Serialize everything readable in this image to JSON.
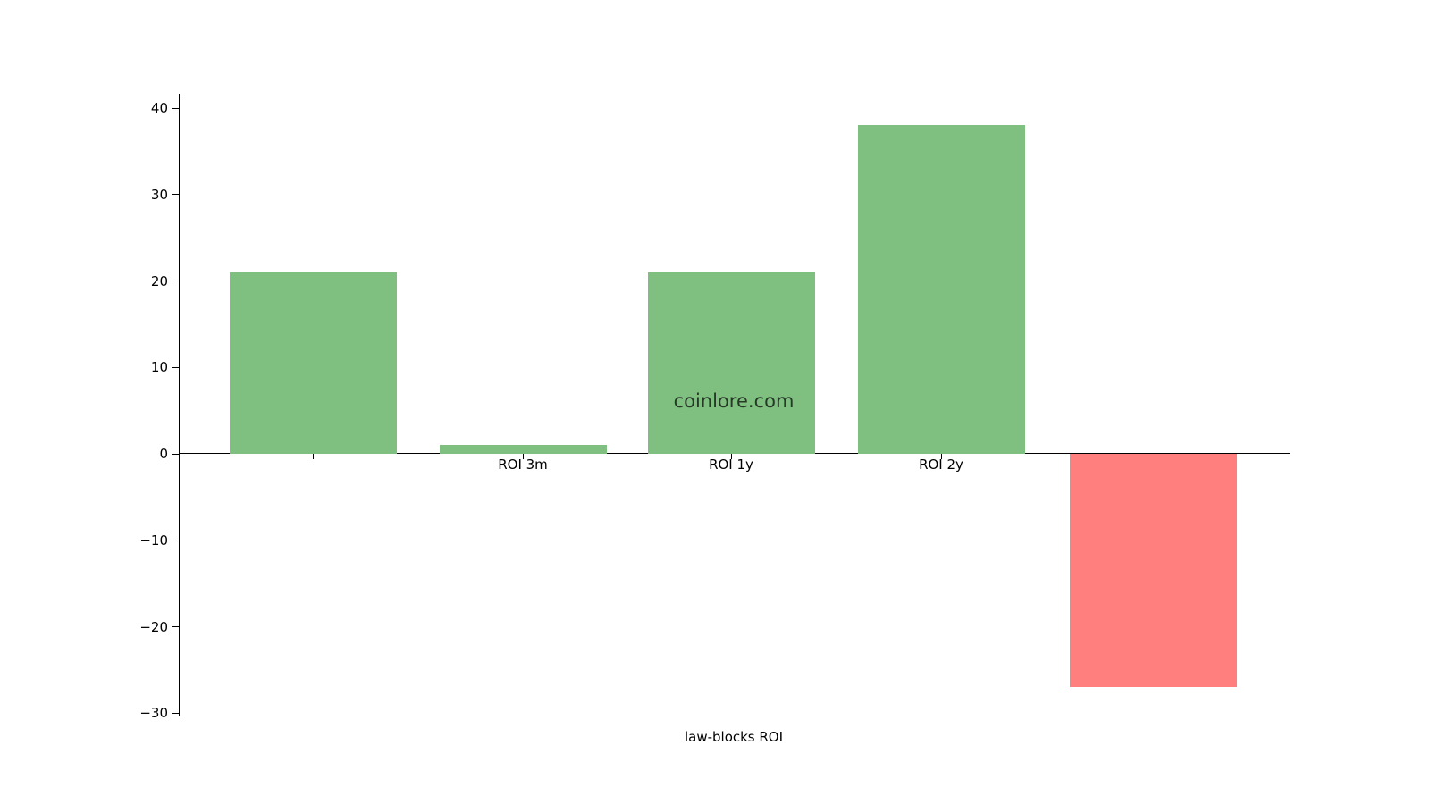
{
  "chart_data": {
    "type": "bar",
    "title": "",
    "xlabel": "law-blocks ROI",
    "ylabel": "",
    "categories": [
      "",
      "ROI 3m",
      "ROI 1y",
      "ROI 2y",
      ""
    ],
    "values": [
      21,
      1,
      21,
      38,
      -27
    ],
    "bar_colors": [
      "#7fbf7f",
      "#7fbf7f",
      "#7fbf7f",
      "#7fbf7f",
      "#ff7f7f"
    ],
    "positive_color": "#7fbf7f",
    "negative_color": "#ff7f7f",
    "yticks": [
      40,
      30,
      20,
      10,
      0,
      -10,
      -20,
      -30
    ],
    "ylim": [
      -30.3,
      41.7
    ],
    "grid": false,
    "legend": null,
    "axis_color": "#000000",
    "watermark": "coinlore.com"
  }
}
